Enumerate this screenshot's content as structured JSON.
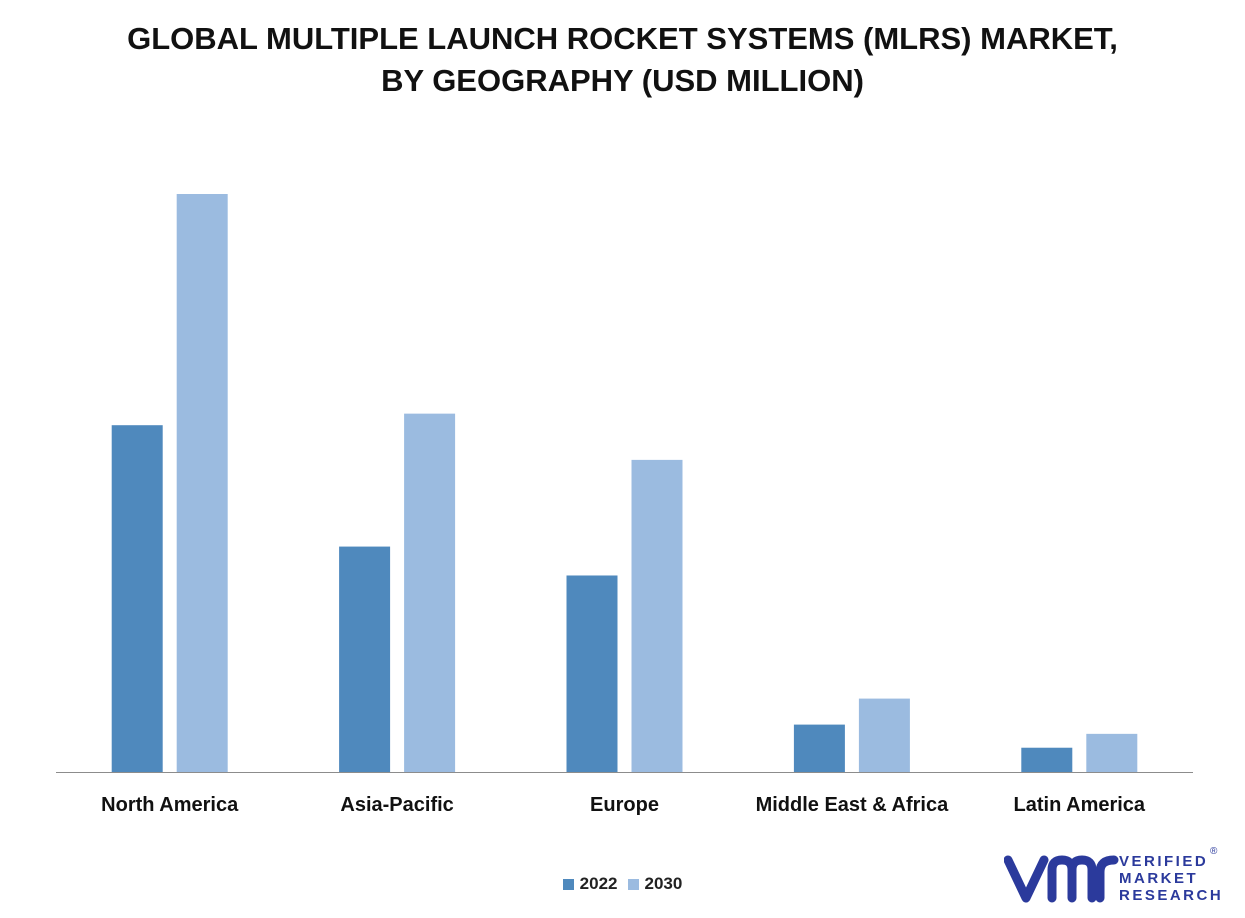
{
  "title_lines": [
    "GLOBAL MULTIPLE LAUNCH ROCKET SYSTEMS (MLRS) MARKET,",
    "BY GEOGRAPHY (USD MILLION)"
  ],
  "chart_data": {
    "type": "bar",
    "title": "GLOBAL MULTIPLE LAUNCH ROCKET SYSTEMS (MLRS) MARKET, BY GEOGRAPHY (USD MILLION)",
    "xlabel": "",
    "ylabel": "",
    "categories": [
      "North America",
      "Asia-Pacific",
      "Europe",
      "Middle East & Africa",
      "Latin America"
    ],
    "series": [
      {
        "name": "2022",
        "color": "#4f89bd",
        "values": [
          60,
          39,
          34,
          8.2,
          4.2
        ]
      },
      {
        "name": "2030",
        "color": "#9bbbe0",
        "values": [
          100,
          62,
          54,
          12.7,
          6.6
        ]
      }
    ],
    "ylim": [
      0,
      100
    ],
    "grid": false,
    "legend": "bottom-center"
  },
  "logo": {
    "mark": "vmr-logo-icon",
    "lines": [
      "VERIFIED",
      "MARKET",
      "RESEARCH"
    ],
    "registered": "®",
    "color": "#2b3a9c"
  }
}
